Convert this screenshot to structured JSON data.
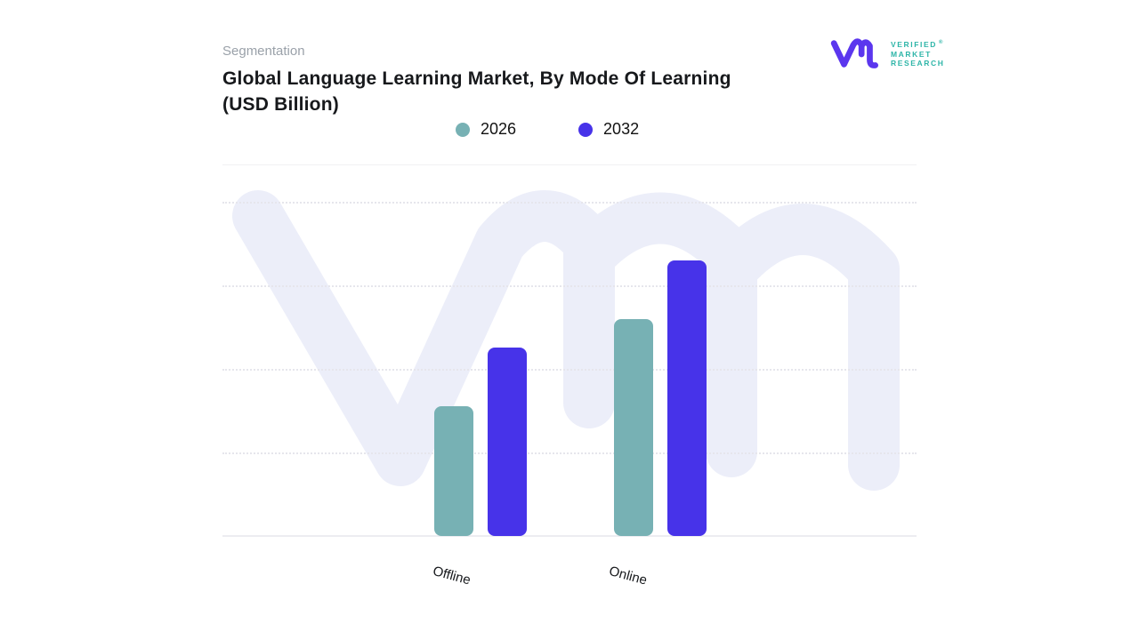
{
  "header": {
    "kicker": "Segmentation",
    "title_lines": [
      "Global Language Learning Market, By Mode Of Learning",
      "(USD Billion)"
    ]
  },
  "logo": {
    "glyph": "vmr-monogram",
    "glyph_color": "#5B36EE",
    "text_color": "#2EB5A8",
    "lines": [
      "VERIFIED",
      "MARKET",
      "RESEARCH"
    ],
    "registered_mark": "®"
  },
  "legend": {
    "items": [
      {
        "label": "2026",
        "color": "#77B1B4"
      },
      {
        "label": "2032",
        "color": "#4733E9"
      }
    ]
  },
  "chart_data": {
    "type": "bar",
    "title": "Global Language Learning Market, By Mode Of Learning (USD Billion)",
    "categories": [
      "Offline",
      "Online"
    ],
    "series": [
      {
        "name": "2026",
        "color": "#77B1B4",
        "values": [
          1.55,
          2.6
        ]
      },
      {
        "name": "2032",
        "color": "#4733E9",
        "values": [
          2.25,
          3.3
        ]
      }
    ],
    "xlabel": "",
    "ylabel": "",
    "ylim": [
      0,
      4.4
    ],
    "value_axis_labels_visible": false,
    "values_note": "No numeric axis labels shown in image; values estimated in gridline units (1 unit per dotted gridline above baseline).",
    "grid": "horizontal-dotted",
    "legend_position": "top-center",
    "category_label_rotation_deg": 15,
    "watermark": "vmr-monogram"
  }
}
